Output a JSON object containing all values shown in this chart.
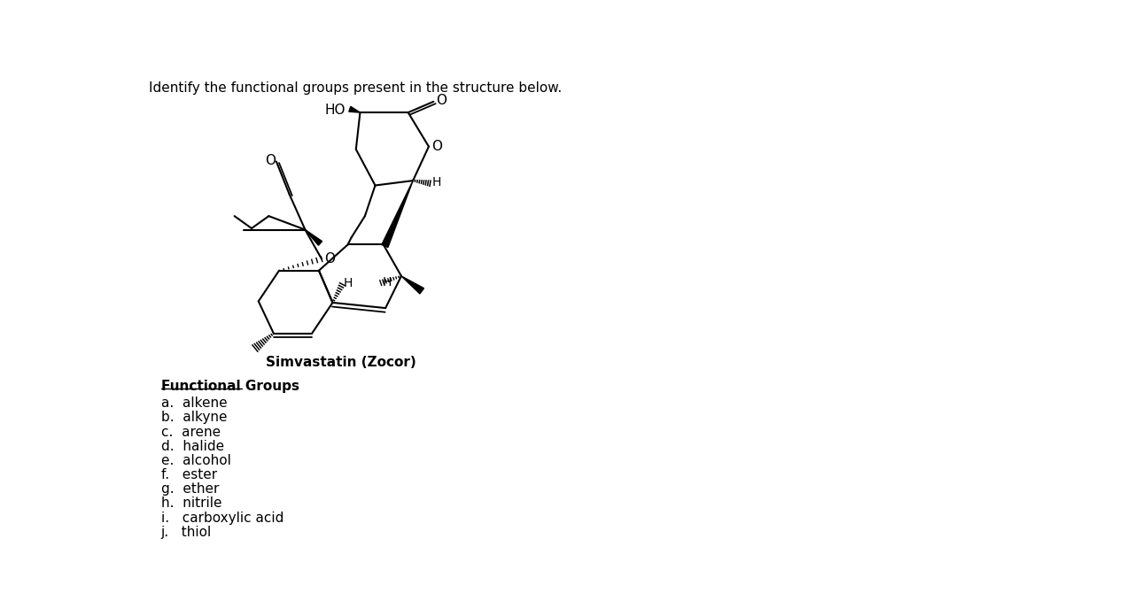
{
  "title_text": "Identify the functional groups present in the structure below.",
  "molecule_label": "Simvastatin (Zocor)",
  "functional_groups_header": "Functional Groups",
  "functional_groups": [
    "a.  alkene",
    "b.  alkyne",
    "c.  arene",
    "d.  halide",
    "e.  alcohol",
    "f.   ester",
    "g.  ether",
    "h.  nitrile",
    "i.   carboxylic acid",
    "j.   thiol"
  ],
  "background_color": "#ffffff",
  "text_color": "#000000"
}
